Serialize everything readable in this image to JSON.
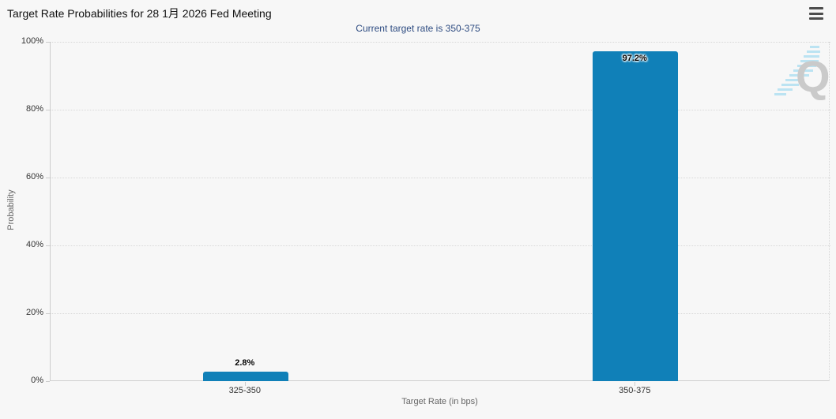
{
  "header": {
    "title": "Target Rate Probabilities for 28 1月 2026 Fed Meeting",
    "menu_icon": "hamburger-icon"
  },
  "chart": {
    "subtitle": "Current target rate is 350-375",
    "watermark_letter": "Q"
  },
  "chart_data": {
    "type": "bar",
    "title": "Target Rate Probabilities for 28 1月 2026 Fed Meeting",
    "subtitle": "Current target rate is 350-375",
    "categories": [
      "325-350",
      "350-375"
    ],
    "values": [
      2.8,
      97.2
    ],
    "value_labels": [
      "2.8%",
      "97.2%"
    ],
    "xlabel": "Target Rate (in bps)",
    "ylabel": "Probability",
    "ylim": [
      0,
      100
    ],
    "y_tick_step": 20,
    "y_tick_labels": [
      "0%",
      "20%",
      "40%",
      "60%",
      "80%",
      "100%"
    ],
    "grid": "horizontal-dotted",
    "legend": "none",
    "bar_color": "#1080b8"
  },
  "colors": {
    "background": "#f7f7f7",
    "bar": "#1080b8",
    "subtitle_text": "#2d4b81",
    "axis_line": "#cccccc",
    "gridline": "#d8d8d8",
    "tick_text": "#333333",
    "axis_title_text": "#666666",
    "watermark_gray": "#c6c6c6",
    "watermark_blue": "#b5e1f2"
  }
}
